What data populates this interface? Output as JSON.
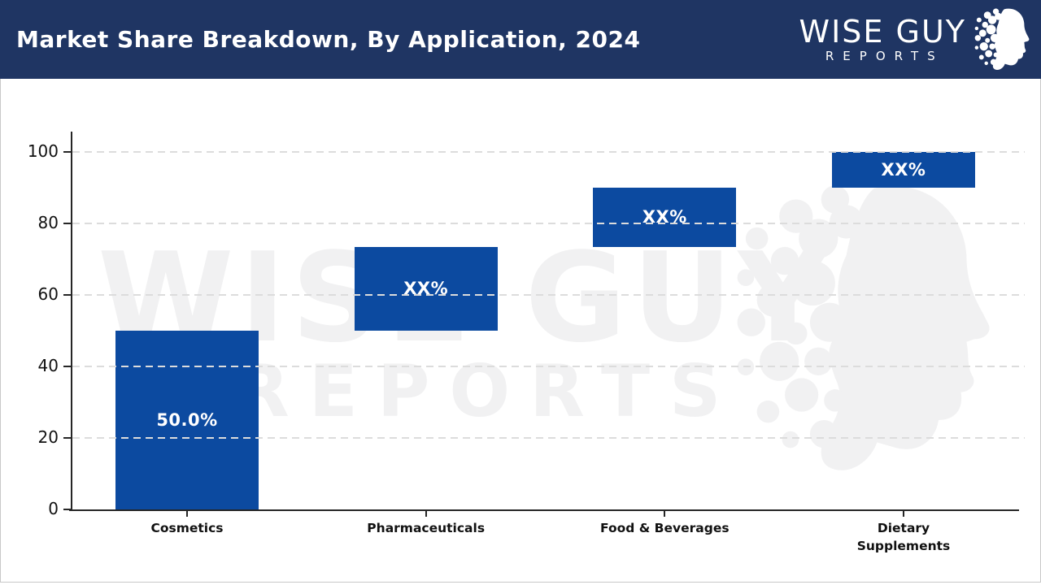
{
  "header": {
    "title": "Market Share Breakdown, By Application, 2024",
    "logo": {
      "line1": "WISE GUY",
      "line2": "REPORTS"
    }
  },
  "watermark": {
    "line1": "WISE GUY",
    "line2": "REPORTS"
  },
  "colors": {
    "header_bg": "#1f3563",
    "bar": "#0c4aa0",
    "axis": "#262626",
    "gridline": "#dcdcdc",
    "text": "#111111",
    "label_on_bar": "#ffffff",
    "watermark": "#f1f1f2",
    "border": "#c8c8c8"
  },
  "chart_data": {
    "type": "bar",
    "subtype": "waterfall",
    "title": "Market Share Breakdown, By Application, 2024",
    "xlabel": "",
    "ylabel": "",
    "categories": [
      "Cosmetics",
      "Pharmaceuticals",
      "Food & Beverages",
      "Dietary Supplements"
    ],
    "segments": [
      {
        "category": "Cosmetics",
        "start": 0,
        "end": 50,
        "value": 50,
        "label": "50.0%"
      },
      {
        "category": "Pharmaceuticals",
        "start": 50,
        "end": 73.5,
        "value": 23.5,
        "label": "XX%"
      },
      {
        "category": "Food & Beverages",
        "start": 73.5,
        "end": 90,
        "value": 16.5,
        "label": "XX%"
      },
      {
        "category": "Dietary Supplements",
        "start": 90,
        "end": 100,
        "value": 10,
        "label": "XX%"
      }
    ],
    "yticks": [
      0,
      20,
      40,
      60,
      80,
      100
    ],
    "ylim": [
      0,
      105
    ],
    "grid": "horizontal-dashed",
    "legend": "none"
  }
}
